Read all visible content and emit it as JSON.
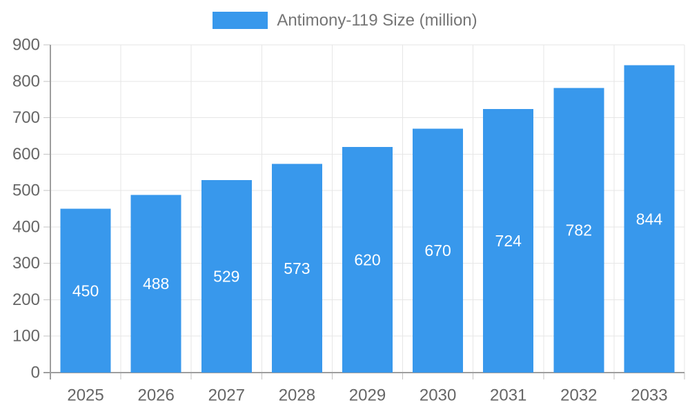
{
  "legend": {
    "label": "Antimony-119 Size (million)"
  },
  "colors": {
    "bar": "#3898EC",
    "grid": "#E6E6E6",
    "axis": "#9E9E9E",
    "tick": "#C2C2C2",
    "axis_label": "#666666",
    "legend_text": "#757575",
    "bar_label": "#FFFFFF",
    "background": "#FFFFFF"
  },
  "chart_data": {
    "type": "bar",
    "title": "Antimony-119 Size (million)",
    "categories": [
      "2025",
      "2026",
      "2027",
      "2028",
      "2029",
      "2030",
      "2031",
      "2032",
      "2033"
    ],
    "values": [
      450,
      488,
      529,
      573,
      620,
      670,
      724,
      782,
      844
    ],
    "series_name": "Antimony-119 Size (million)",
    "xlabel": "",
    "ylabel": "",
    "ylim": [
      0,
      900
    ],
    "yticks": [
      0,
      100,
      200,
      300,
      400,
      500,
      600,
      700,
      800,
      900
    ],
    "grid": true,
    "legend_position": "top",
    "value_labels": "inside-center"
  }
}
